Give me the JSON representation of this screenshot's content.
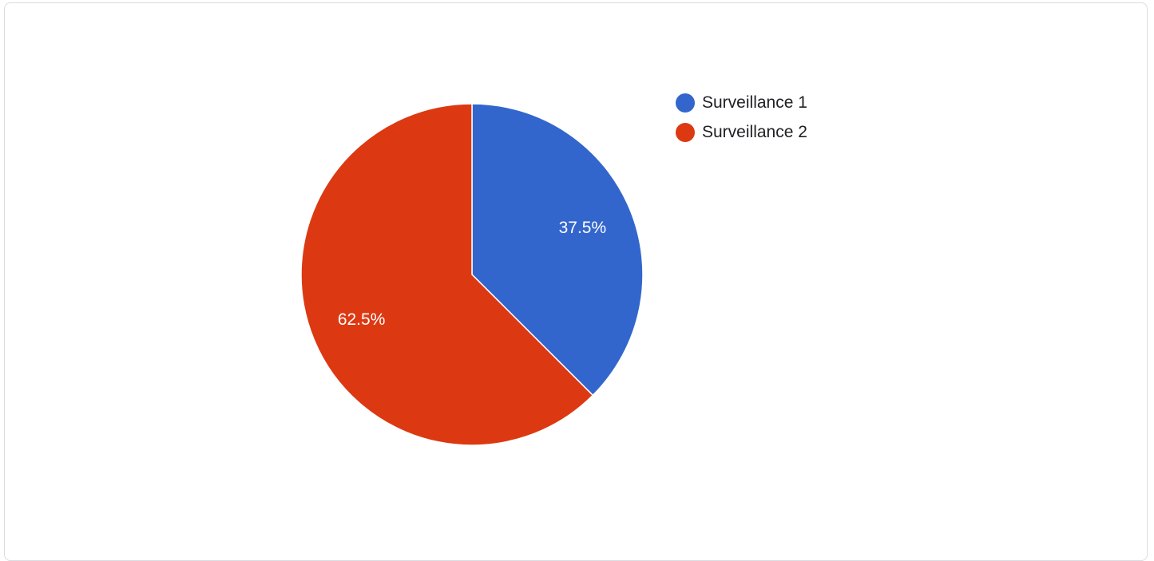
{
  "chart_data": {
    "type": "pie",
    "title": "",
    "categories": [
      "Surveillance 1",
      "Surveillance 2"
    ],
    "values": [
      37.5,
      62.5
    ],
    "data_labels": [
      "37.5%",
      "62.5%"
    ],
    "colors": [
      "#3366cc",
      "#dc3912"
    ],
    "start_angle_deg": 0,
    "direction": "clockwise",
    "legend_position": "right"
  },
  "legend": {
    "items": [
      {
        "label": "Surveillance 1",
        "color": "#3366cc"
      },
      {
        "label": "Surveillance 2",
        "color": "#dc3912"
      }
    ]
  }
}
